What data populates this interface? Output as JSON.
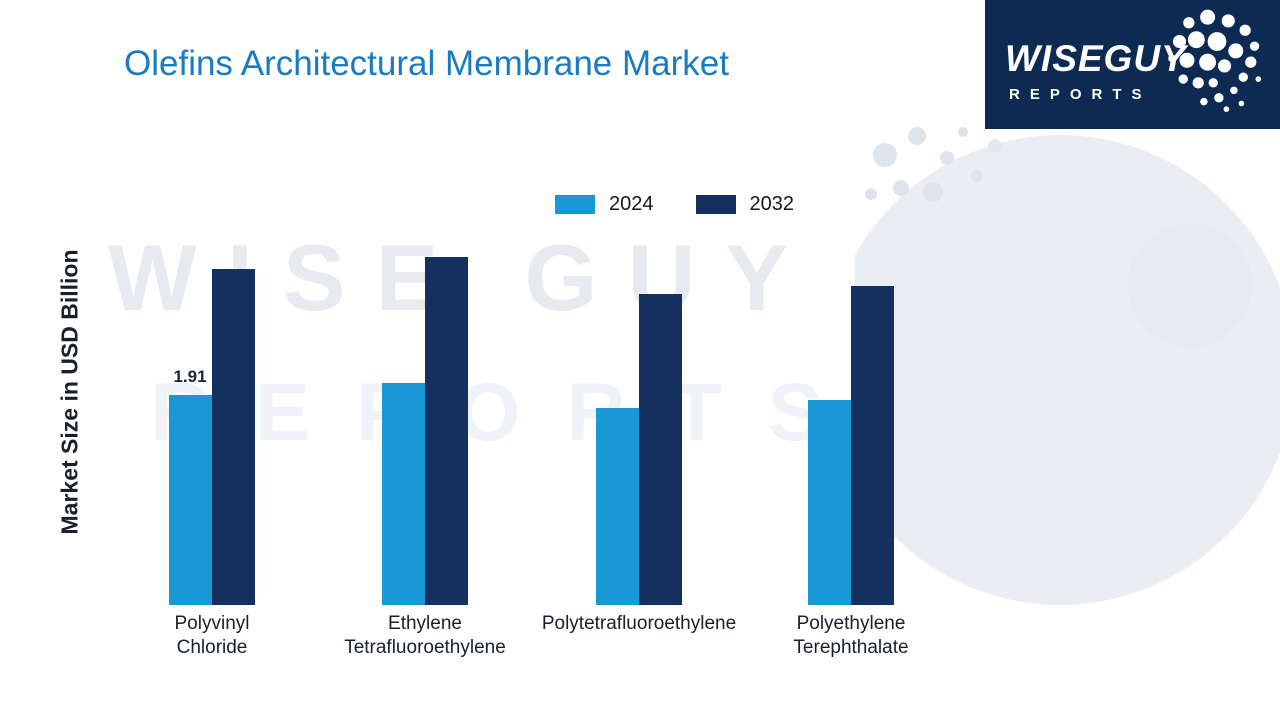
{
  "header": {
    "title": "Olefins Architectural Membrane Market"
  },
  "logo": {
    "brand": "WISEGUY",
    "subtitle": "REPORTS",
    "bg_color": "#0d2a52",
    "text_color": "#ffffff"
  },
  "watermark": {
    "line1": "WISE GUY",
    "line2": "REPORTS"
  },
  "chart_data": {
    "type": "bar",
    "title": "Olefins Architectural Membrane Market",
    "xlabel": "",
    "ylabel": "Market Size in USD Billion",
    "ylim": [
      0,
      3.2
    ],
    "grid": false,
    "legend_position": "top-center",
    "categories": [
      "Polyvinyl Chloride",
      "Ethylene Tetrafluoroethylene",
      "Polytetrafluoroethylene",
      "Polyethylene Terephthalate"
    ],
    "category_label_lines": [
      [
        "Polyvinyl",
        "Chloride"
      ],
      [
        "Ethylene",
        "Tetrafluoroethylene"
      ],
      [
        "Polytetrafluoroethylene"
      ],
      [
        "Polyethylene",
        "Terephthalate"
      ]
    ],
    "series": [
      {
        "name": "2024",
        "color": "#1899d6",
        "values": [
          1.91,
          2.02,
          1.79,
          1.86
        ]
      },
      {
        "name": "2032",
        "color": "#13305f",
        "values": [
          3.05,
          3.16,
          2.83,
          2.9
        ]
      }
    ],
    "data_labels": [
      {
        "series": "2024",
        "category": "Polyvinyl Chloride",
        "text": "1.91"
      }
    ]
  },
  "colors": {
    "title_text": "#1a7cc0",
    "bar_2024": "#1899d6",
    "bar_2032": "#13305f",
    "axis_text": "#1a1f2b"
  }
}
